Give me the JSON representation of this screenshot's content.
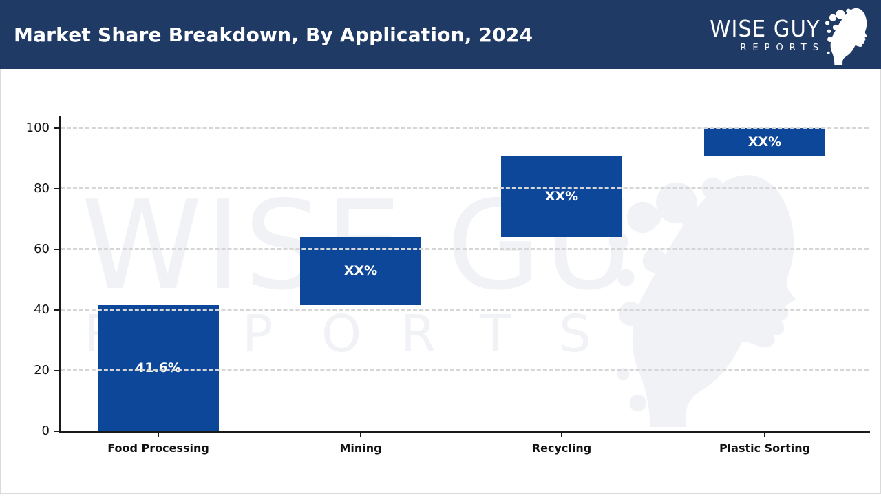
{
  "header": {
    "title": "Market Share Breakdown, By Application, 2024",
    "logo": {
      "brand": "WISE GUY",
      "sub": "REPORTS"
    }
  },
  "watermark": {
    "brand_left": "WISE GU",
    "brand_right": "Y",
    "reports_letters": [
      "R",
      "E",
      "P",
      "O",
      "R",
      "T",
      "S"
    ]
  },
  "chart_data": {
    "type": "bar",
    "subtype": "waterfall",
    "title": "Market Share Breakdown, By Application, 2024",
    "categories": [
      "Food Processing",
      "Mining",
      "Recycling",
      "Plastic Sorting"
    ],
    "segments": [
      {
        "category": "Food Processing",
        "start": 0,
        "end": 41.6,
        "label": "41.6%"
      },
      {
        "category": "Mining",
        "start": 41.6,
        "end": 64.2,
        "label": "XX%"
      },
      {
        "category": "Recycling",
        "start": 64.2,
        "end": 91.0,
        "label": "XX%"
      },
      {
        "category": "Plastic Sorting",
        "start": 91.0,
        "end": 100.0,
        "label": "XX%"
      }
    ],
    "ylabel": "",
    "xlabel": "",
    "ylim": [
      0,
      100
    ],
    "yticks": [
      0,
      20,
      40,
      60,
      80,
      100
    ],
    "grid": "horizontal-dashed",
    "legend": "none"
  },
  "colors": {
    "header_bg": "#203A66",
    "bar": "#0C4799",
    "axis": "#1A1A1A",
    "grid": "#D6D6D6",
    "watermark": "#F1F2F5",
    "title_text": "#FFFFFF",
    "bar_label_text": "#FFFFFF"
  }
}
